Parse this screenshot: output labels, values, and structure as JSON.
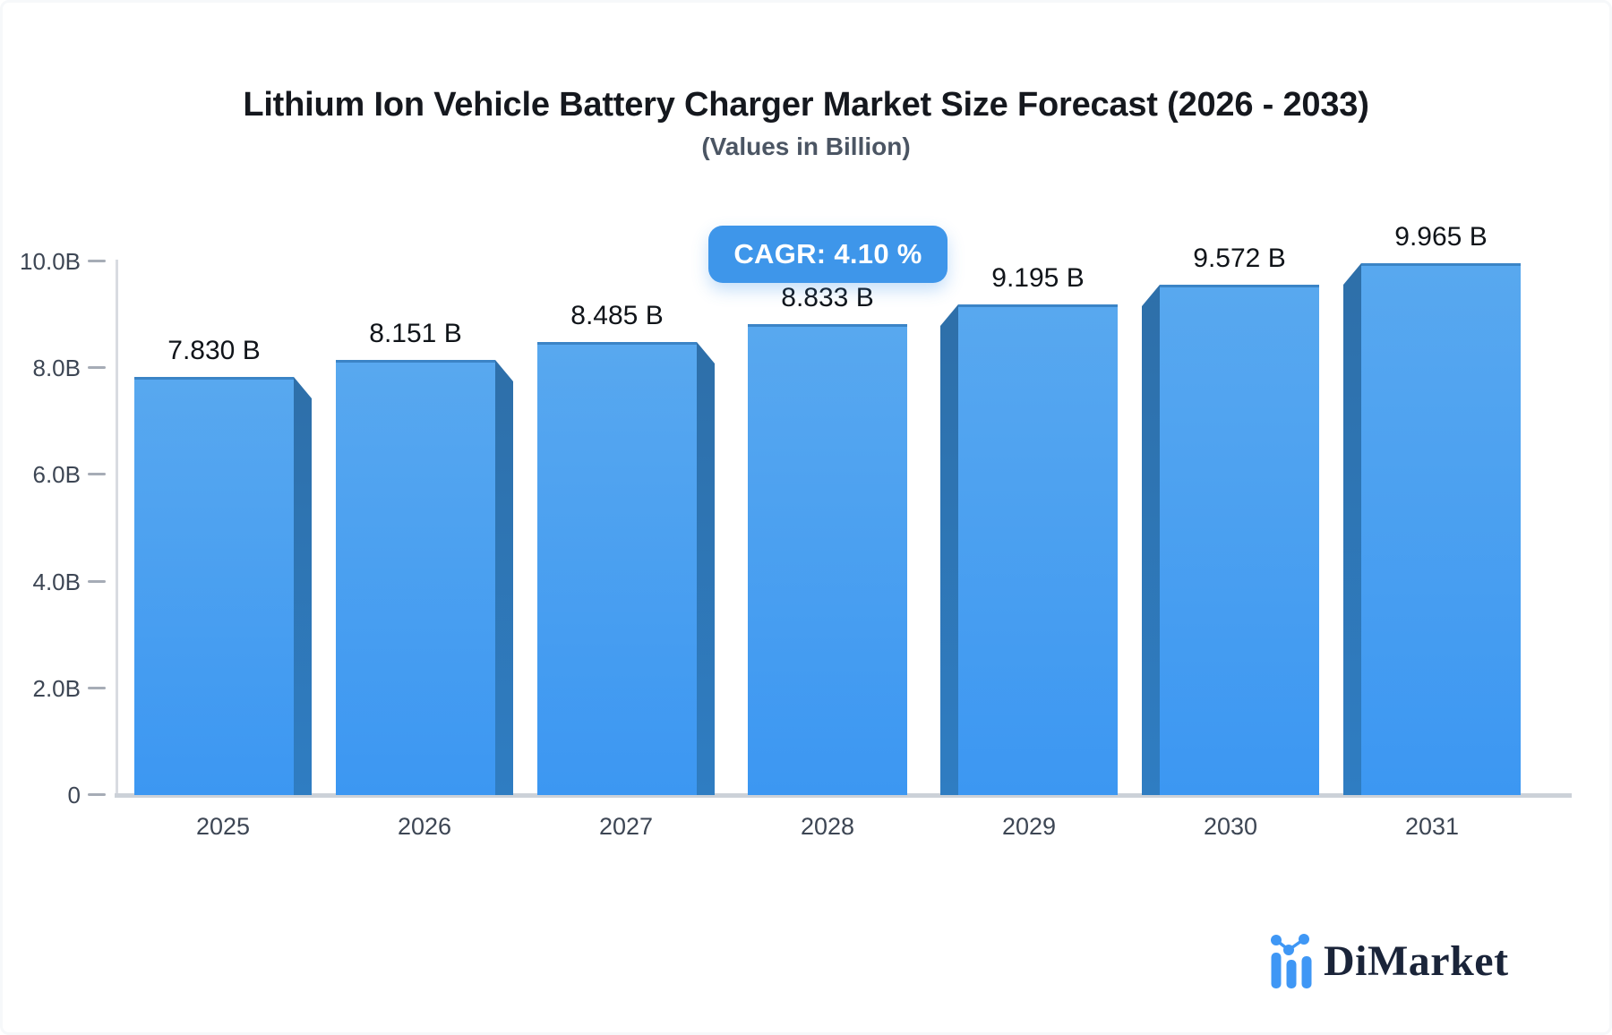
{
  "header": {
    "title": "Lithium Ion Vehicle Battery Charger Market Size Forecast (2026 - 2033)",
    "subtitle": "(Values in Billion)"
  },
  "cagr_badge": {
    "label": "CAGR: 4.10 %"
  },
  "chart_data": {
    "type": "bar",
    "title": "Lithium Ion Vehicle Battery Charger Market Size Forecast (2026 - 2033)",
    "subtitle": "(Values in Billion)",
    "categories": [
      "2025",
      "2026",
      "2027",
      "2028",
      "2029",
      "2030",
      "2031"
    ],
    "values": [
      7.83,
      8.151,
      8.485,
      8.833,
      9.195,
      9.572,
      9.965
    ],
    "value_labels": [
      "7.830 B",
      "8.151 B",
      "8.485 B",
      "8.833 B",
      "9.195 B",
      "9.572 B",
      "9.965 B"
    ],
    "y_ticks": [
      {
        "value": 0,
        "label": "0"
      },
      {
        "value": 2,
        "label": "2.0B"
      },
      {
        "value": 4,
        "label": "4.0B"
      },
      {
        "value": 6,
        "label": "6.0B"
      },
      {
        "value": 8,
        "label": "8.0B"
      },
      {
        "value": 10,
        "label": "10.0B"
      }
    ],
    "ylim": [
      0,
      10
    ],
    "xlabel": "",
    "ylabel": "",
    "grid": false,
    "legend": false,
    "annotation": "CAGR: 4.10 %",
    "bar_style": "3d-bevel"
  },
  "logo": {
    "text": "DiMarket",
    "icon": "mini-bar-line-chart-icon"
  },
  "colors": {
    "bar_top": "#58a8ef",
    "bar_bottom": "#3c97f2",
    "bar_side_top": "#2e6fa9",
    "bar_side_bottom": "#2f7dc2",
    "badge_bg": "#3e96ea",
    "axis_line": "#d8dbe1",
    "baseline": "#ccd1d8",
    "tick_dash": "#a6acb6",
    "logo_blue": "#3f97f5",
    "logo_navy": "#1a2439"
  }
}
